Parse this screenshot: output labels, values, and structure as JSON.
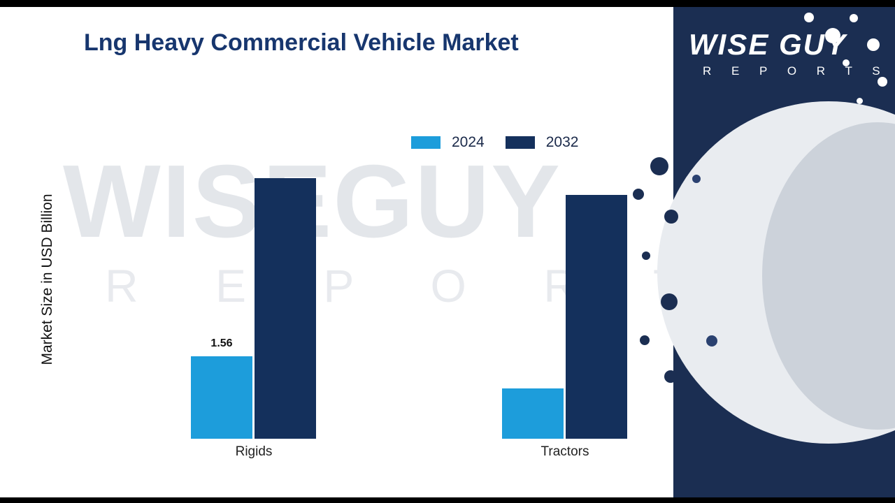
{
  "title": "Lng Heavy Commercial Vehicle Market",
  "ylabel": "Market Size in USD Billion",
  "legend": [
    {
      "label": "2024",
      "color": "#1d9ddb"
    },
    {
      "label": "2032",
      "color": "#14305c"
    }
  ],
  "watermark": {
    "line1": "WISEGUY",
    "line2": "R E P O R T S"
  },
  "logo": {
    "line1": "WISE GUY",
    "line2": "R E P O R T S"
  },
  "chart_data": {
    "type": "bar",
    "title": "Lng Heavy Commercial Vehicle Market",
    "xlabel": "",
    "ylabel": "Market Size in USD Billion",
    "categories": [
      "Rigids",
      "Tractors"
    ],
    "series": [
      {
        "name": "2024",
        "color": "#1d9ddb",
        "values": [
          1.56,
          0.95
        ],
        "data_labels": [
          "1.56",
          ""
        ]
      },
      {
        "name": "2032",
        "color": "#14305c",
        "values": [
          4.93,
          4.62
        ],
        "data_labels": [
          "",
          ""
        ]
      }
    ],
    "ylim": [
      0,
      5.5
    ],
    "grid": false,
    "legend_position": "top"
  }
}
